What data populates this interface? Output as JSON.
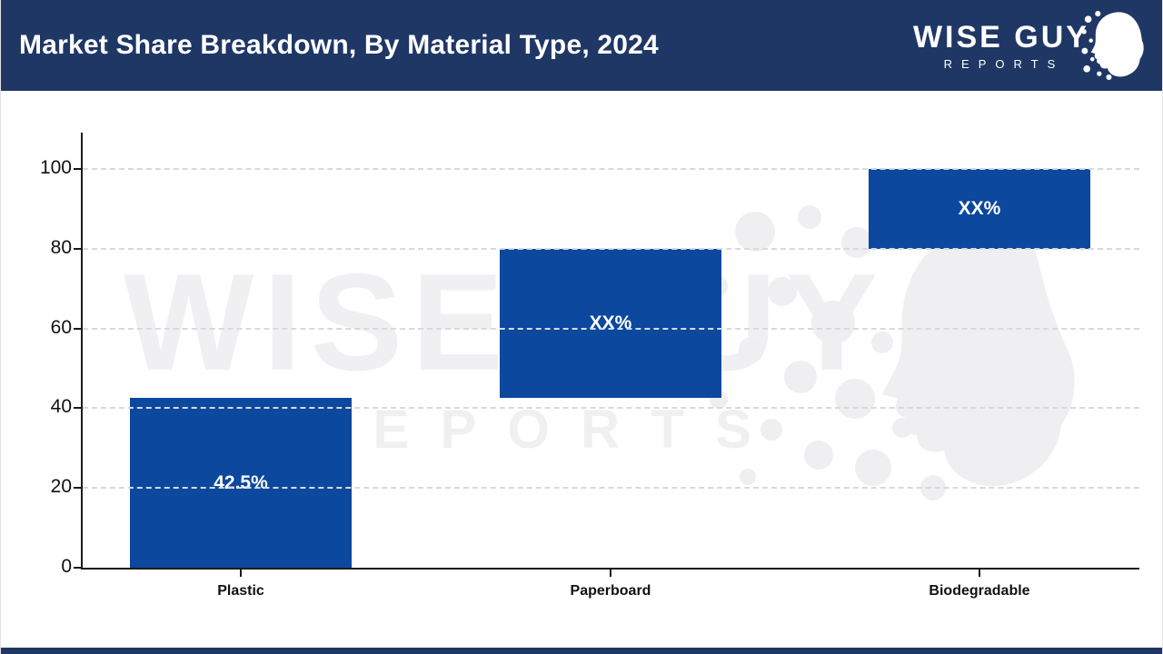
{
  "header": {
    "title": "Market Share Breakdown, By Material Type, 2024",
    "logo": {
      "line1": "WISE GUY",
      "line2": "REPORTS"
    }
  },
  "watermark": {
    "line1": "WISE GUY",
    "line2": "REPORTS"
  },
  "chart_data": {
    "type": "bar",
    "subtype": "waterfall",
    "title": "Market Share Breakdown, By Material Type, 2024",
    "xlabel": "",
    "ylabel": "",
    "categories": [
      "Plastic",
      "Paperboard",
      "Biodegradable"
    ],
    "bars": [
      {
        "category": "Plastic",
        "from": 0,
        "to": 42.5,
        "label": "42.5%"
      },
      {
        "category": "Paperboard",
        "from": 42.5,
        "to": 80,
        "label": "XX%"
      },
      {
        "category": "Biodegradable",
        "from": 80,
        "to": 100,
        "label": "XX%"
      }
    ],
    "values": [
      42.5,
      37.5,
      20
    ],
    "yticks": [
      0,
      20,
      40,
      60,
      80,
      100
    ],
    "ylim": [
      0,
      108
    ],
    "grid": "horizontal-dashed",
    "grid_on_top": true,
    "legend": "none",
    "bar_color": "#0b489e",
    "bar_label_color": "#ffffff",
    "axis_color": "#1a1a1a",
    "gridline_color": "#d9d9d9"
  },
  "colors": {
    "header_bg": "#1f3765",
    "footer_bg": "#1f3765",
    "title_text": "#ffffff",
    "watermark": "#f0f0f2",
    "page_bg": "#ffffff"
  }
}
